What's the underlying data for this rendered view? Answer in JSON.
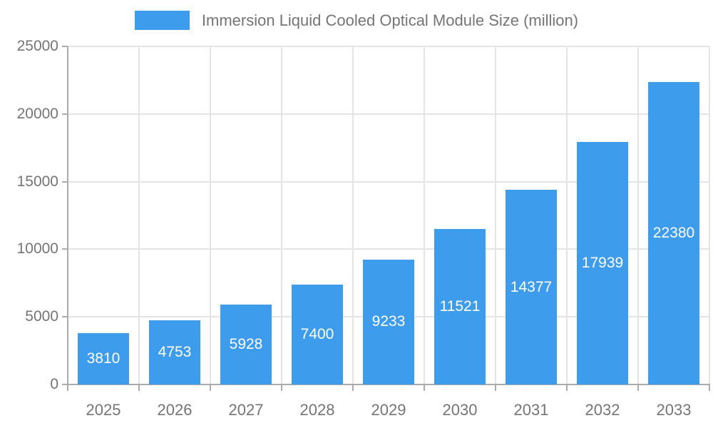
{
  "chart_data": {
    "type": "bar",
    "title": "Immersion Liquid Cooled Optical Module Size (million)",
    "legend": {
      "position": "top",
      "label": "Immersion Liquid Cooled Optical Module Size (million)"
    },
    "categories": [
      "2025",
      "2026",
      "2027",
      "2028",
      "2029",
      "2030",
      "2031",
      "2032",
      "2033"
    ],
    "values": [
      3810,
      4753,
      5928,
      7400,
      9233,
      11521,
      14377,
      17939,
      22380
    ],
    "xlabel": "",
    "ylabel": "",
    "ylim": [
      0,
      25000
    ],
    "yticks": [
      0,
      5000,
      10000,
      15000,
      20000,
      25000
    ],
    "grid": true,
    "value_labels_shown": true,
    "colors": {
      "bar": "#3E9CED",
      "value_label": "#FFFFFF",
      "axis": "#ABABAB",
      "gridline": "#E4E4E4",
      "tick_label": "#757575",
      "legend_text": "#757575",
      "background": "#FFFFFF"
    }
  }
}
